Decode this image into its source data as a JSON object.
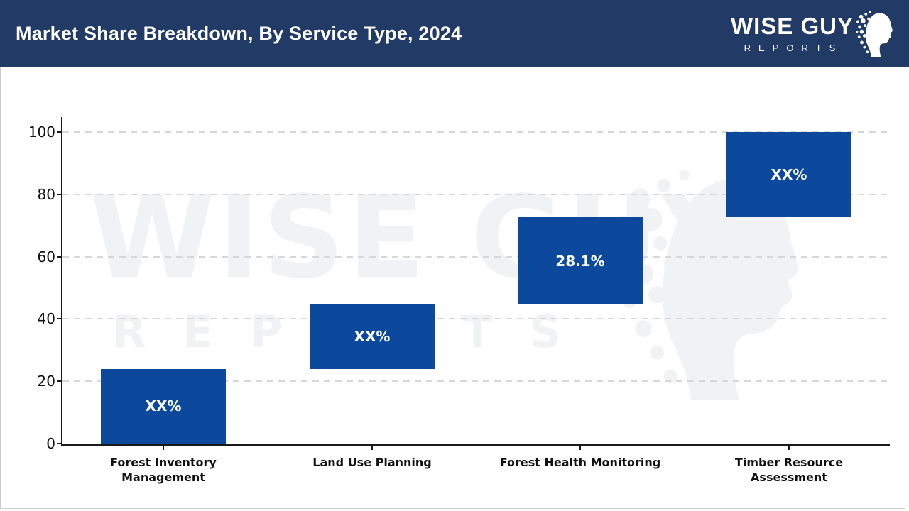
{
  "header": {
    "title": "Market Share Breakdown, By Service Type, 2024",
    "logo": {
      "wordmark": "WISE GUY",
      "subtext": "REPORTS"
    }
  },
  "watermark": {
    "wordmark": "WISE GUY",
    "subtext": "REPORTS"
  },
  "chart_data": {
    "type": "bar",
    "variant": "waterfall",
    "title": "Market Share Breakdown, By Service Type, 2024",
    "categories": [
      "Forest Inventory Management",
      "Land Use Planning",
      "Forest Health Monitoring",
      "Timber Resource Assessment"
    ],
    "segments": [
      {
        "category": "Forest Inventory Management",
        "start": 0,
        "end": 24,
        "increment": 24.0,
        "label": "XX%"
      },
      {
        "category": "Land Use Planning",
        "start": 24,
        "end": 44.6,
        "increment": 20.6,
        "label": "XX%"
      },
      {
        "category": "Forest Health Monitoring",
        "start": 44.6,
        "end": 72.7,
        "increment": 28.1,
        "label": "28.1%"
      },
      {
        "category": "Timber Resource Assessment",
        "start": 72.7,
        "end": 100,
        "increment": 27.3,
        "label": "XX%"
      }
    ],
    "ylim": [
      0,
      100
    ],
    "yticks": [
      0,
      20,
      40,
      60,
      80,
      100
    ],
    "xlabel": "",
    "ylabel": "",
    "grid": "horizontal-dashed",
    "legend": "none",
    "colors": {
      "bar": "#0C499C",
      "bar_label": "#FFFFFF",
      "axis": "#1A1A1A",
      "grid": "#D7D7D7",
      "header_bg": "#213A66",
      "header_text": "#FFFFFF",
      "watermark": "#F1F2F4"
    }
  }
}
